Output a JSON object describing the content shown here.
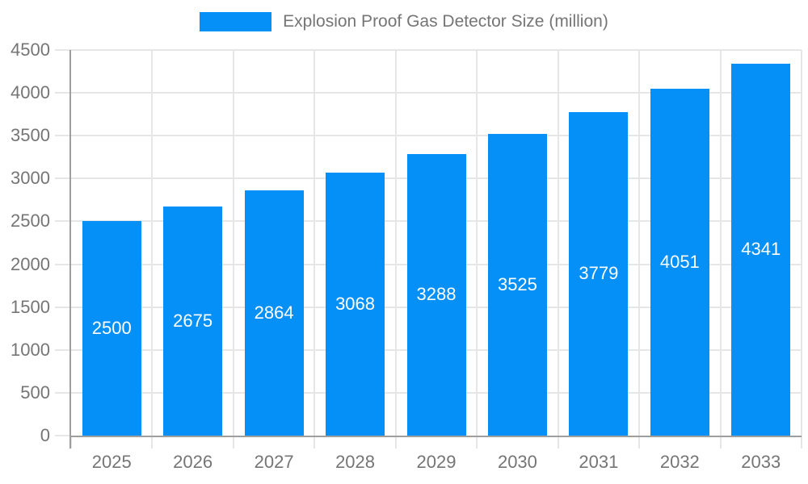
{
  "legend": {
    "label": "Explosion Proof Gas Detector Size (million)"
  },
  "chart_data": {
    "type": "bar",
    "title": "Explosion Proof Gas Detector Size (million)",
    "categories": [
      "2025",
      "2026",
      "2027",
      "2028",
      "2029",
      "2030",
      "2031",
      "2032",
      "2033"
    ],
    "values": [
      2500,
      2675,
      2864,
      3068,
      3288,
      3525,
      3779,
      4051,
      4341
    ],
    "bar_value_labels": [
      "2500",
      "2675",
      "2864",
      "3068",
      "3288",
      "3525",
      "3779",
      "4051",
      "4341"
    ],
    "y_ticks": [
      0,
      500,
      1000,
      1500,
      2000,
      2500,
      3000,
      3500,
      4000,
      4500
    ],
    "ylim": [
      0,
      4500
    ],
    "xlabel": "",
    "ylabel": "",
    "grid": true,
    "legend_position": "top",
    "value_label_position": "center-of-bar",
    "colors": {
      "bar": "#0590f8",
      "bar_label": "#ffffff",
      "axis_text": "#757575",
      "grid_line": "#e6e6e6",
      "axis_line": "#9e9e9e",
      "background": "#ffffff"
    }
  }
}
